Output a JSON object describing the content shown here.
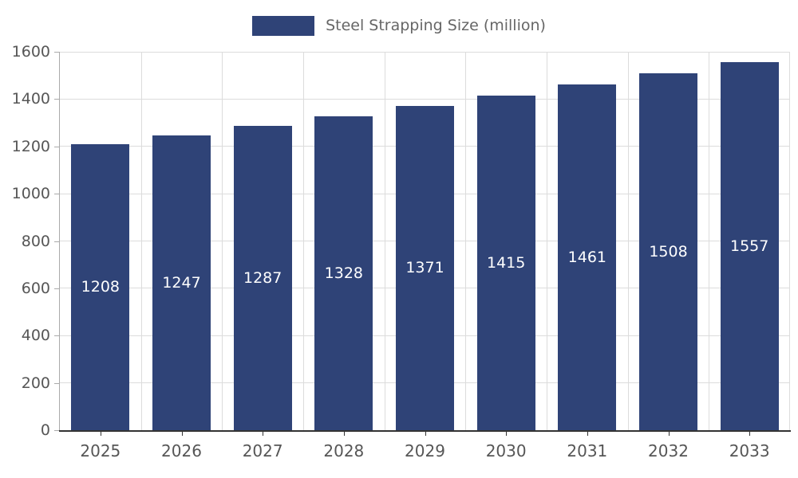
{
  "chart_data": {
    "type": "bar",
    "title": "",
    "legend": "Steel Strapping Size (million)",
    "legend_position": "top",
    "categories": [
      "2025",
      "2026",
      "2027",
      "2028",
      "2029",
      "2030",
      "2031",
      "2032",
      "2033"
    ],
    "values": [
      1208,
      1247,
      1287,
      1328,
      1371,
      1415,
      1461,
      1508,
      1557
    ],
    "value_labels": [
      "1208",
      "1247",
      "1287",
      "1328",
      "1371",
      "1415",
      "1461",
      "1508",
      "1557"
    ],
    "xlabel": "",
    "ylabel": "",
    "ylim": [
      0,
      1600
    ],
    "yticks": [
      0,
      200,
      400,
      600,
      800,
      1000,
      1200,
      1400,
      1600
    ],
    "grid": true,
    "bar_color": "#2f4377",
    "value_label_color": "#ffffff",
    "tick_label_color": "#565656",
    "legend_text_color": "#666666",
    "gridline_color": "#dcdcdc"
  }
}
